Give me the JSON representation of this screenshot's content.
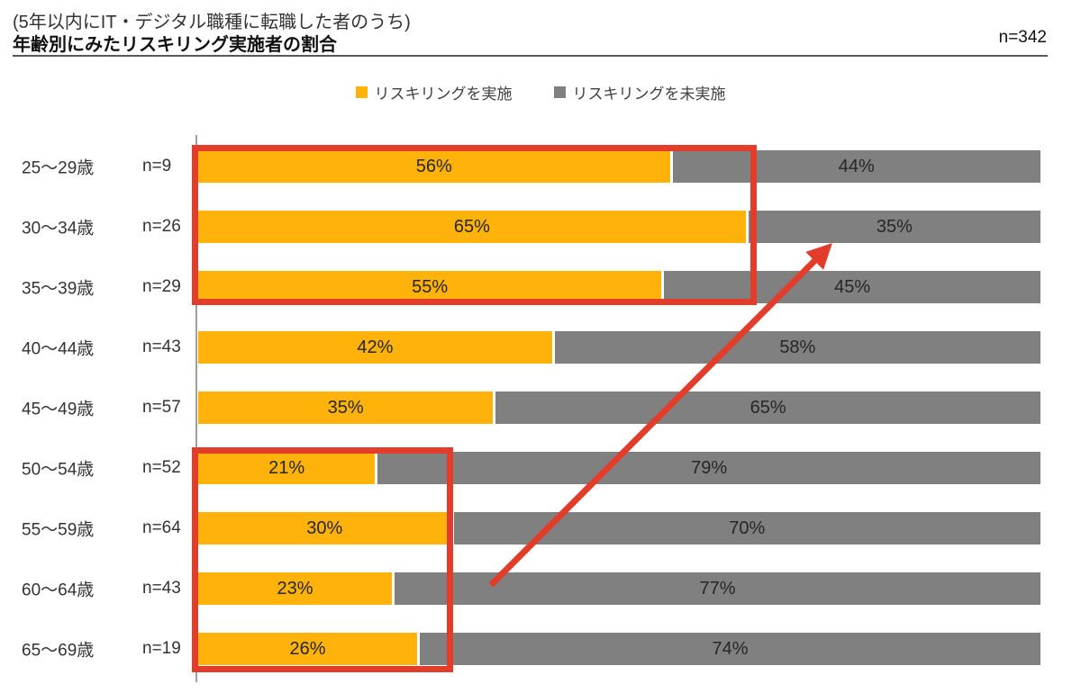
{
  "header": {
    "subtitle": "(5年以内にIT・デジタル職種に転職した者のうち)",
    "title": "年齢別にみたリスキリング実施者の割合",
    "sample_size": "n=342"
  },
  "legend": {
    "items": [
      {
        "label": "リスキリングを実施",
        "color": "#FFB30A"
      },
      {
        "label": "リスキリングを未実施",
        "color": "#808080"
      }
    ]
  },
  "chart_data": {
    "type": "bar",
    "orientation": "horizontal",
    "stacked": true,
    "unit": "%",
    "xlim": [
      0,
      100
    ],
    "grid": false,
    "legend_position": "top-center",
    "categories": [
      "25〜29歳",
      "30〜34歳",
      "35〜39歳",
      "40〜44歳",
      "45〜49歳",
      "50〜54歳",
      "55〜59歳",
      "60〜64歳",
      "65〜69歳"
    ],
    "sample_sizes": [
      "n=9",
      "n=26",
      "n=29",
      "n=43",
      "n=57",
      "n=52",
      "n=64",
      "n=43",
      "n=19"
    ],
    "series": [
      {
        "name": "リスキリングを実施",
        "color": "#FFB30A",
        "values": [
          56,
          65,
          55,
          42,
          35,
          21,
          30,
          23,
          26
        ],
        "labels": [
          "56%",
          "65%",
          "55%",
          "42%",
          "35%",
          "21%",
          "30%",
          "23%",
          "26%"
        ]
      },
      {
        "name": "リスキリングを未実施",
        "color": "#808080",
        "values": [
          44,
          35,
          45,
          58,
          65,
          79,
          70,
          77,
          74
        ],
        "labels": [
          "44%",
          "35%",
          "45%",
          "58%",
          "65%",
          "79%",
          "70%",
          "77%",
          "74%"
        ]
      }
    ],
    "annotations": {
      "highlight_color": "#E23C2A",
      "highlight_boxes": [
        {
          "rows": [
            "25〜29歳",
            "30〜34歳",
            "35〜39歳"
          ],
          "covers_pct_range": [
            0,
            66
          ]
        },
        {
          "rows": [
            "50〜54歳",
            "55〜59歳",
            "60〜64歳",
            "65〜69歳"
          ],
          "covers_pct_range": [
            0,
            30
          ]
        }
      ],
      "arrow": {
        "color": "#E23C2A",
        "direction": "up-right",
        "from_near_row": "60〜64歳",
        "to_near_row": "30〜34歳"
      }
    }
  }
}
